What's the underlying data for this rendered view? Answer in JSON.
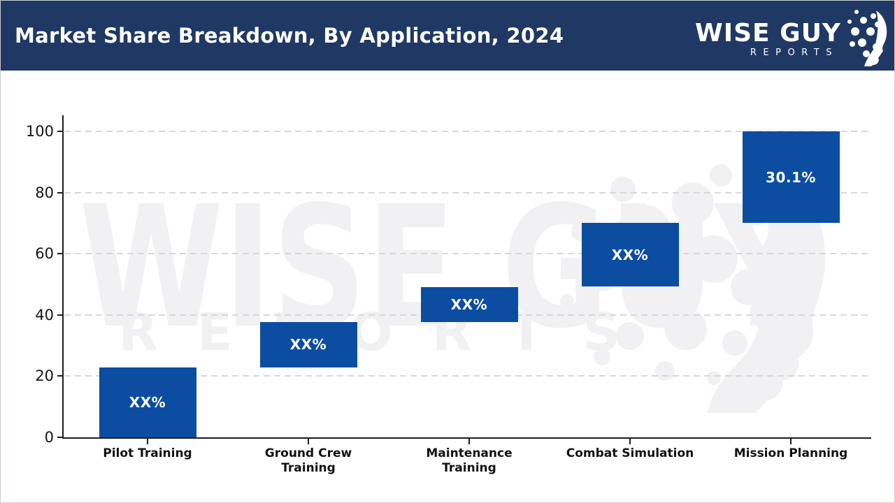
{
  "header": {
    "title": "Market Share Breakdown, By Application, 2024",
    "logo_line1": "WISE GUY",
    "logo_line2": "REPORTS"
  },
  "watermark": {
    "line1": "WISE GUY",
    "line2": "REPORTS"
  },
  "colors": {
    "header_bg": "#1f3864",
    "bar": "#0c4da2",
    "bar_label": "#ffffff",
    "gridline": "#d8d8d8",
    "axis": "#1c1c1c",
    "watermark": "#f1f1f3"
  },
  "chart_data": {
    "type": "bar",
    "variant": "floating-waterfall",
    "title": "Market Share Breakdown, By Application, 2024",
    "categories": [
      "Pilot Training",
      "Ground Crew Training",
      "Maintenance Training",
      "Combat Simulation",
      "Mission Planning"
    ],
    "category_lines": [
      [
        "Pilot Training"
      ],
      [
        "Ground Crew",
        "Training"
      ],
      [
        "Maintenance",
        "Training"
      ],
      [
        "Combat Simulation"
      ],
      [
        "Mission Planning"
      ]
    ],
    "segments": [
      {
        "category": "Pilot Training",
        "start": 0,
        "end": 22.8,
        "label": "XX%"
      },
      {
        "category": "Ground Crew Training",
        "start": 22.8,
        "end": 37.7,
        "label": "XX%"
      },
      {
        "category": "Maintenance Training",
        "start": 37.7,
        "end": 49.2,
        "label": "XX%"
      },
      {
        "category": "Combat Simulation",
        "start": 49.2,
        "end": 70,
        "label": "XX%"
      },
      {
        "category": "Mission Planning",
        "start": 70,
        "end": 100,
        "label": "30.1%"
      }
    ],
    "ylim": [
      0,
      100
    ],
    "yticks": [
      0,
      20,
      40,
      60,
      80,
      100
    ],
    "xlabel": "",
    "ylabel": "",
    "grid": "horizontal-dashed",
    "legend": null
  }
}
